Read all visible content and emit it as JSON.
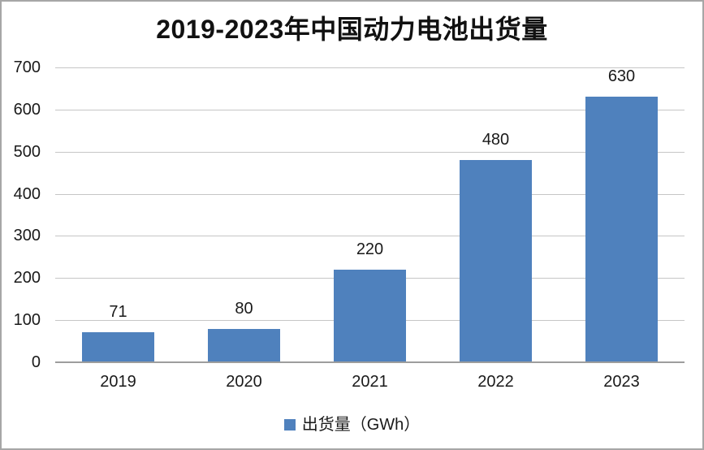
{
  "chart_data": {
    "type": "bar",
    "title": "2019-2023年中国动力电池出货量",
    "categories": [
      "2019",
      "2020",
      "2021",
      "2022",
      "2023"
    ],
    "series": [
      {
        "name": "出货量（GWh）",
        "values": [
          71,
          80,
          220,
          480,
          630
        ]
      }
    ],
    "data_labels": [
      "71",
      "80",
      "220",
      "480",
      "630"
    ],
    "xlabel": "",
    "ylabel": "",
    "ylim": [
      0,
      700
    ],
    "yticks": [
      0,
      100,
      200,
      300,
      400,
      500,
      600,
      700
    ],
    "grid": true,
    "legend_position": "bottom",
    "bar_color": "#4F81BD"
  },
  "legend": {
    "swatch_icon": "blue-square-marker",
    "label": "出货量（GWh）"
  },
  "colors": {
    "bar": "#4F81BD",
    "gridline": "#C6C6C6",
    "axis_line": "#9D9D9D",
    "frame_border": "#A6A6A6",
    "text": "#1A1A1A",
    "background": "#FFFFFF"
  }
}
